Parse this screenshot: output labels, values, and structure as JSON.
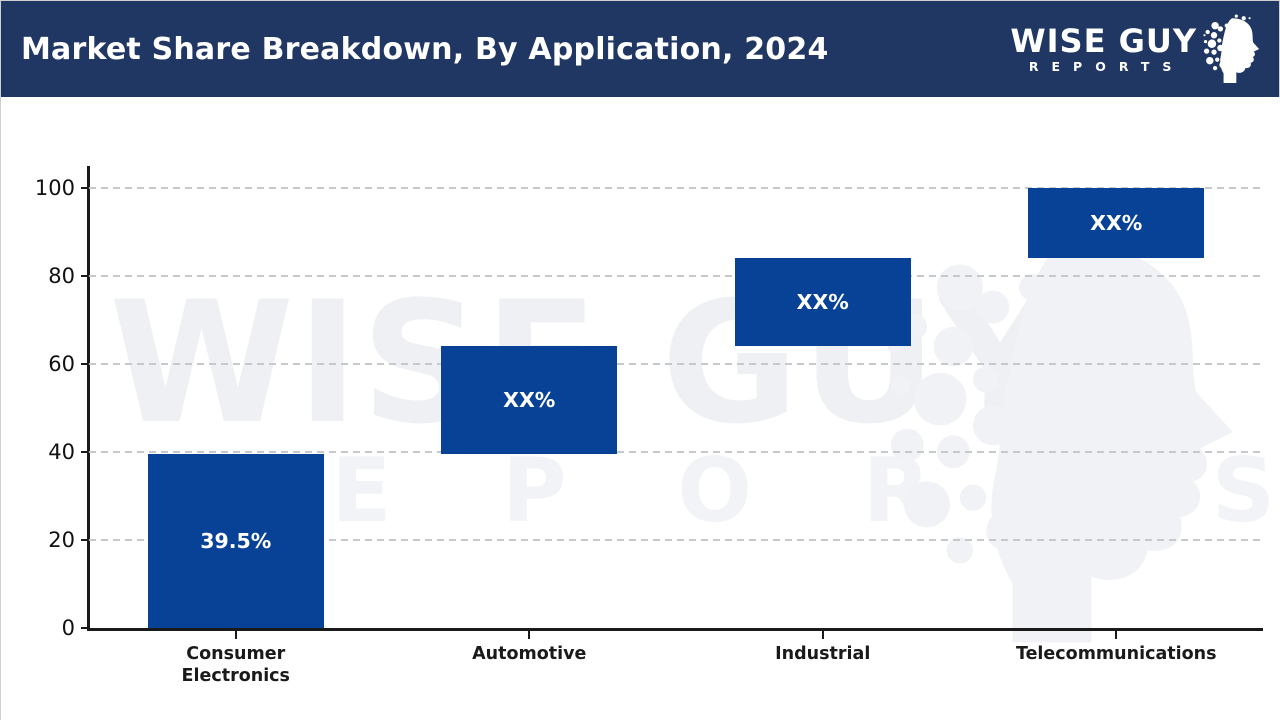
{
  "header": {
    "title": "Market Share Breakdown, By Application, 2024",
    "logo": {
      "line1": "WISE GUY",
      "line2": "REPORTS"
    }
  },
  "watermark": {
    "line1": "WISE GUY",
    "line2": "R E P O R T S"
  },
  "chart_data": {
    "type": "bar",
    "subtype": "waterfall-stacked-segments",
    "title": "Market Share Breakdown, By Application, 2024",
    "categories": [
      "Consumer Electronics",
      "Automotive",
      "Industrial",
      "Telecommunications"
    ],
    "category_display": [
      "Consumer\nElectronics",
      "Automotive",
      "Industrial",
      "Telecommunications"
    ],
    "segments": [
      {
        "category": "Consumer Electronics",
        "start": 0,
        "end": 39.5,
        "label": "39.5%"
      },
      {
        "category": "Automotive",
        "start": 39.5,
        "end": 64,
        "label": "XX%"
      },
      {
        "category": "Industrial",
        "start": 64,
        "end": 84,
        "label": "XX%"
      },
      {
        "category": "Telecommunications",
        "start": 84,
        "end": 100,
        "label": "XX%"
      }
    ],
    "xlabel": "",
    "ylabel": "",
    "ylim": [
      0,
      100
    ],
    "yticks": [
      0,
      20,
      40,
      60,
      80,
      100
    ],
    "grid": "horizontal-dashed",
    "legend": "none",
    "bar_color": "#084296",
    "bar_label_color": "#ffffff",
    "axis_color": "#1a1a1a",
    "grid_color": "#c7cacd"
  },
  "colors": {
    "header_background": "#203764",
    "header_text": "#ffffff",
    "bar_blue": "#084296",
    "watermark_gray": "#eef0f3",
    "page_background": "#ffffff"
  }
}
